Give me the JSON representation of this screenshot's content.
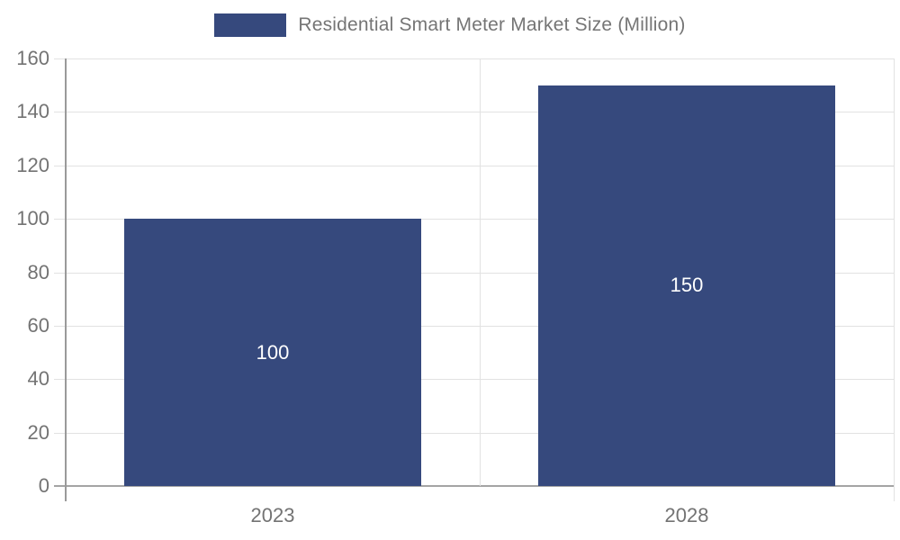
{
  "chart_data": {
    "type": "bar",
    "title": "Residential Smart Meter Market Size (Million)",
    "legend_position": "top",
    "categories": [
      "2023",
      "2028"
    ],
    "series": [
      {
        "name": "Residential Smart Meter Market Size (Million)",
        "values": [
          100,
          150
        ]
      }
    ],
    "values": [
      100,
      150
    ],
    "data_labels": [
      "100",
      "150"
    ],
    "ylim": [
      0,
      160
    ],
    "yticks": [
      0,
      20,
      40,
      60,
      80,
      100,
      120,
      140,
      160
    ],
    "grid": true,
    "xlabel": "",
    "ylabel": "",
    "bar_color": "#36497d",
    "data_label_color": "#ffffff",
    "axis_label_color": "#737373",
    "gridline_color": "#e2e2e2",
    "zero_line_color": "#a4a4a4"
  }
}
